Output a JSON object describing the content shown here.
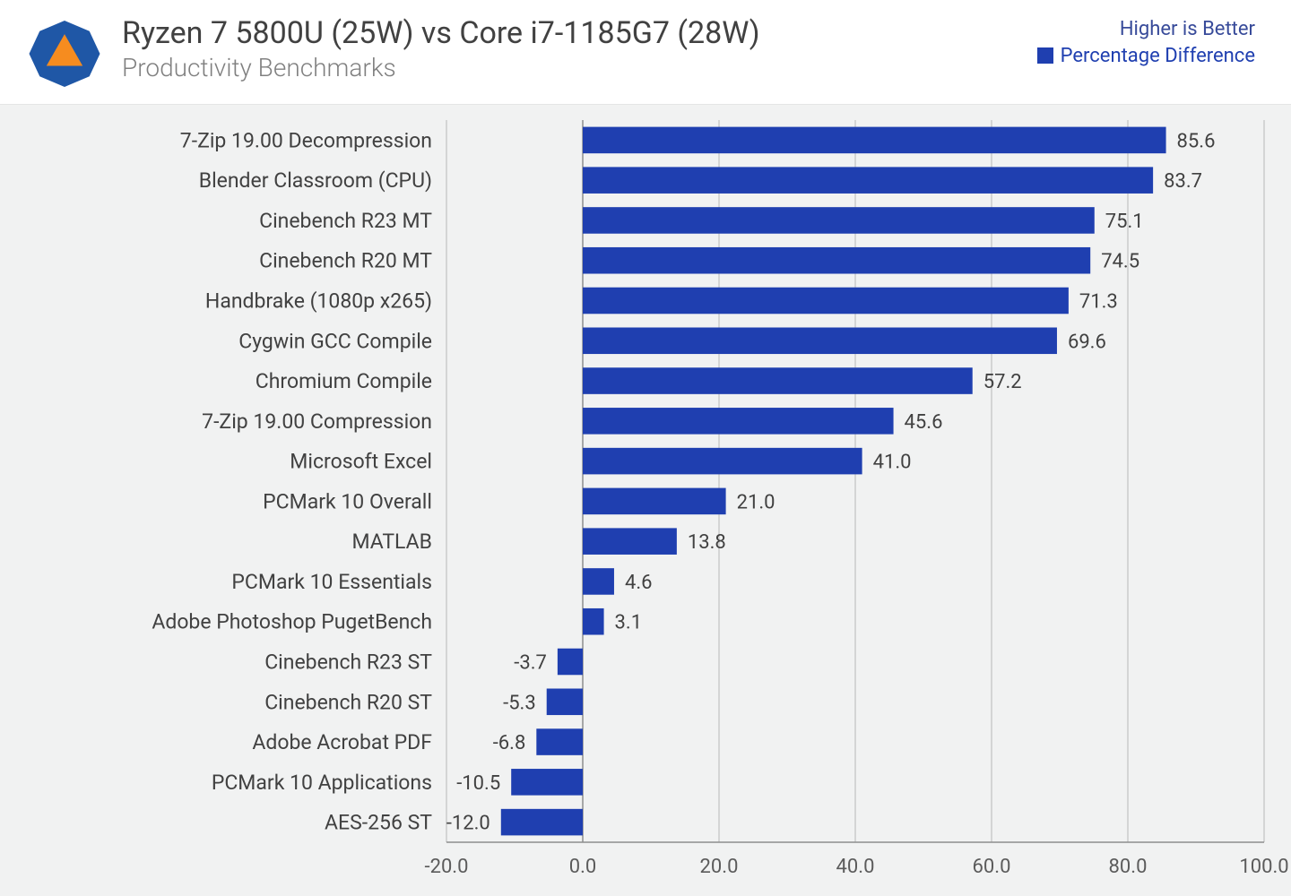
{
  "header": {
    "title": "Ryzen 7 5800U (25W) vs Core i7-1185G7 (28W)",
    "subtitle": "Productivity Benchmarks",
    "note": "Higher is Better",
    "series_label": "Percentage Difference"
  },
  "chart": {
    "type": "bar-horizontal",
    "background_color": "#f1f2f2",
    "header_bg": "#ffffff",
    "bar_color": "#1f3fb0",
    "grid_color": "#b8b8b8",
    "axis_color": "#8e8e8e",
    "text_color": "#414141",
    "cat_fontsize": 23,
    "val_fontsize": 22,
    "tick_fontsize": 22,
    "xlim": [
      -20,
      100
    ],
    "xtick_step": 20,
    "xticks": [
      -20.0,
      0.0,
      20.0,
      40.0,
      60.0,
      80.0,
      100.0
    ],
    "xtick_labels": [
      "-20.0",
      "0.0",
      "20.0",
      "40.0",
      "60.0",
      "80.0",
      "100.0"
    ],
    "bar_height_ratio": 0.66,
    "logo_colors": {
      "outer": "#1f57a6",
      "inner_triangle": "#f68c1f"
    },
    "categories": [
      "7-Zip 19.00 Decompression",
      "Blender Classroom (CPU)",
      "Cinebench R23 MT",
      "Cinebench R20 MT",
      "Handbrake (1080p x265)",
      "Cygwin GCC Compile",
      "Chromium Compile",
      "7-Zip 19.00 Compression",
      "Microsoft Excel",
      "PCMark 10 Overall",
      "MATLAB",
      "PCMark 10 Essentials",
      "Adobe Photoshop PugetBench",
      "Cinebench R23 ST",
      "Cinebench R20 ST",
      "Adobe Acrobat PDF",
      "PCMark 10 Applications",
      "AES-256 ST"
    ],
    "values": [
      85.6,
      83.7,
      75.1,
      74.5,
      71.3,
      69.6,
      57.2,
      45.6,
      41.0,
      21.0,
      13.8,
      4.6,
      3.1,
      -3.7,
      -5.3,
      -6.8,
      -10.5,
      -12.0
    ],
    "value_labels": [
      "85.6",
      "83.7",
      "75.1",
      "74.5",
      "71.3",
      "69.6",
      "57.2",
      "45.6",
      "41.0",
      "21.0",
      "13.8",
      "4.6",
      "3.1",
      "-3.7",
      "-5.3",
      "-6.8",
      "-10.5",
      "-12.0"
    ]
  }
}
